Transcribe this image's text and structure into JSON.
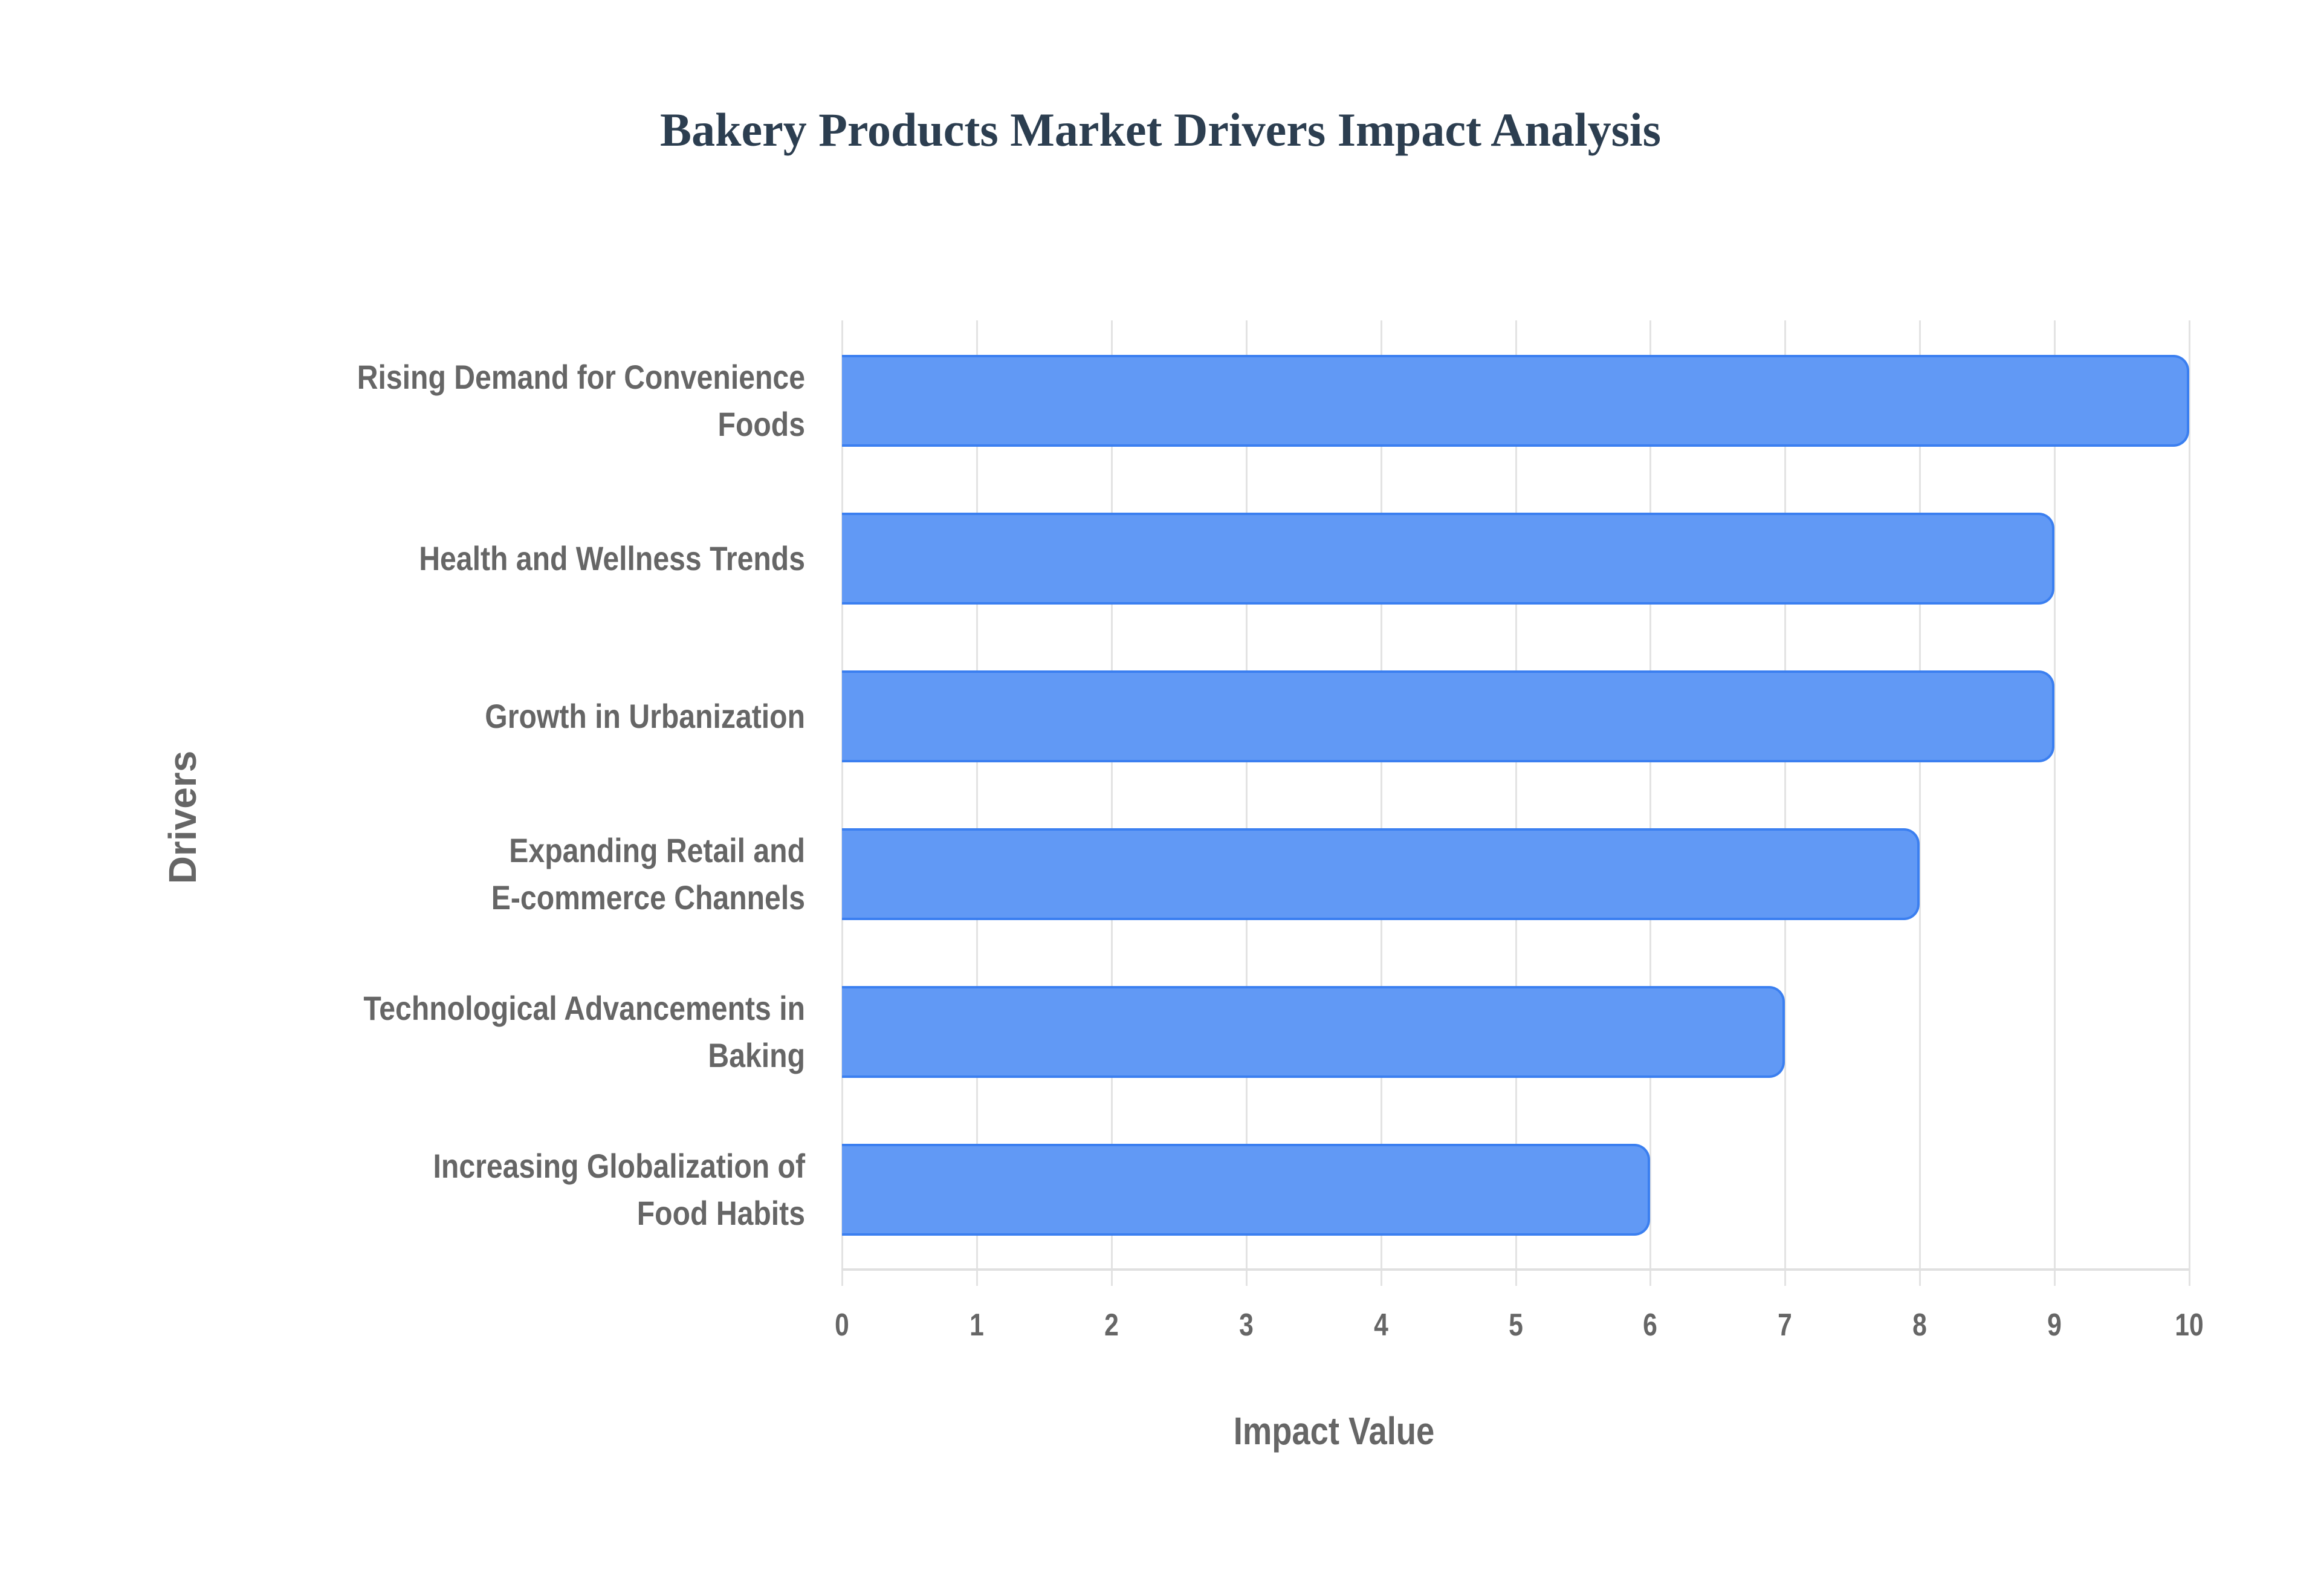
{
  "chart_data": {
    "type": "bar",
    "orientation": "horizontal",
    "title": "Bakery Products Market Drivers Impact Analysis",
    "xlabel": "Impact Value",
    "ylabel": "Drivers",
    "xlim": [
      0,
      10
    ],
    "x_ticks": [
      "0",
      "1",
      "2",
      "3",
      "4",
      "5",
      "6",
      "7",
      "8",
      "9",
      "10"
    ],
    "grid": true,
    "legend": null,
    "categories": [
      "Rising Demand for Convenience Foods",
      "Health and Wellness Trends",
      "Growth in Urbanization",
      "Expanding Retail and E-commerce Channels",
      "Technological Advancements in Baking",
      "Increasing Globalization of Food Habits"
    ],
    "category_lines": [
      [
        "Rising Demand for Convenience",
        "Foods"
      ],
      [
        "Health and Wellness Trends"
      ],
      [
        "Growth in Urbanization"
      ],
      [
        "Expanding Retail and",
        "E-commerce Channels"
      ],
      [
        "Technological Advancements in",
        "Baking"
      ],
      [
        "Increasing Globalization of",
        "Food Habits"
      ]
    ],
    "values": [
      10,
      9,
      9,
      8,
      7,
      6
    ],
    "colors": {
      "bar_fill": "#6199F5",
      "bar_border": "#3B7FF0",
      "title": "#2C3E50",
      "text": "#666666",
      "grid": "#E3E3E3"
    }
  }
}
